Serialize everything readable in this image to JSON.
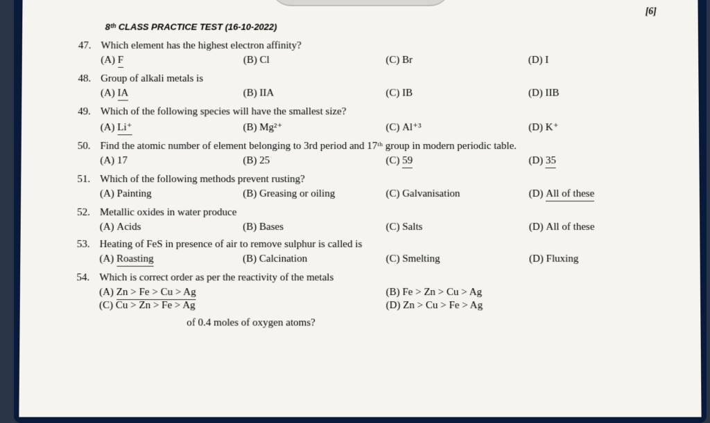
{
  "pageNumber": "[6]",
  "header": "8ᵗʰ CLASS PRACTICE TEST (16-10-2022)",
  "questions": [
    {
      "num": "47.",
      "text": "Which element has the highest electron affinity?",
      "opts": [
        {
          "k": "(A)",
          "v": "F",
          "u": true
        },
        {
          "k": "(B)",
          "v": "Cl"
        },
        {
          "k": "(C)",
          "v": "Br"
        },
        {
          "k": "(D)",
          "v": "I"
        }
      ],
      "cols": 4
    },
    {
      "num": "48.",
      "text": "Group of alkali metals is",
      "opts": [
        {
          "k": "(A)",
          "v": "IA",
          "u": true
        },
        {
          "k": "(B)",
          "v": "IIA"
        },
        {
          "k": "(C)",
          "v": "IB"
        },
        {
          "k": "(D)",
          "v": "IIB"
        }
      ],
      "cols": 4
    },
    {
      "num": "49.",
      "text": "Which of the following species will have the smallest size?",
      "opts": [
        {
          "k": "(A)",
          "v": "Li⁺",
          "u": true
        },
        {
          "k": "(B)",
          "v": "Mg²⁺"
        },
        {
          "k": "(C)",
          "v": "Al⁺³"
        },
        {
          "k": "(D)",
          "v": "K⁺"
        }
      ],
      "cols": 4
    },
    {
      "num": "50.",
      "text": "Find the atomic number of element belonging to 3rd period and 17ᵗʰ group in modern periodic table.",
      "opts": [
        {
          "k": "(A)",
          "v": "17"
        },
        {
          "k": "(B)",
          "v": "25"
        },
        {
          "k": "(C)",
          "v": "59",
          "u": true
        },
        {
          "k": "(D)",
          "v": "35",
          "u": true
        }
      ],
      "cols": 4
    },
    {
      "num": "51.",
      "text": "Which of the following methods prevent rusting?",
      "opts": [
        {
          "k": "(A)",
          "v": "Painting"
        },
        {
          "k": "(B)",
          "v": "Greasing or oiling"
        },
        {
          "k": "(C)",
          "v": "Galvanisation"
        },
        {
          "k": "(D)",
          "v": "All of these",
          "u": true
        }
      ],
      "cols": 4
    },
    {
      "num": "52.",
      "text": "Metallic oxides in water produce",
      "opts": [
        {
          "k": "(A)",
          "v": "Acids"
        },
        {
          "k": "(B)",
          "v": "Bases"
        },
        {
          "k": "(C)",
          "v": "Salts"
        },
        {
          "k": "(D)",
          "v": "All of these"
        }
      ],
      "cols": 4
    },
    {
      "num": "53.",
      "text": "Heating of FeS in presence of air to remove sulphur is called is",
      "opts": [
        {
          "k": "(A)",
          "v": "Roasting",
          "u": true
        },
        {
          "k": "(B)",
          "v": "Calcination"
        },
        {
          "k": "(C)",
          "v": "Smelting"
        },
        {
          "k": "(D)",
          "v": "Fluxing"
        }
      ],
      "cols": 4
    },
    {
      "num": "54.",
      "text": "Which is correct order as per the reactivity of the metals",
      "opts": [
        {
          "k": "(A)",
          "v": "Zn > Fe > Cu > Ag",
          "u": true
        },
        {
          "k": "(B)",
          "v": "Fe > Zn > Cu > Ag"
        },
        {
          "k": "(C)",
          "v": "Cu > Zn > Fe > Ag"
        },
        {
          "k": "(D)",
          "v": "Zn > Cu > Fe > Ag"
        }
      ],
      "cols": 2
    }
  ],
  "cutoffText": "of 0.4 moles of oxygen atoms?"
}
